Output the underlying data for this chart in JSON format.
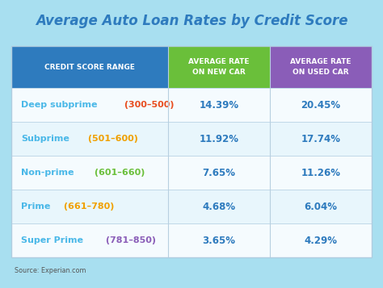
{
  "title": "Average Auto Loan Rates by Credit Score",
  "background_color": "#a8dff0",
  "header_col1_bg": "#2e7bbe",
  "header_col2_bg": "#6abf3a",
  "header_col3_bg": "#8a5db8",
  "header_text_color": "#ffffff",
  "header_col1": "CREDIT SCORE RANGE",
  "header_col2": "AVERAGE RATE\nON NEW CAR",
  "header_col3": "AVERAGE RATE\nON USED CAR",
  "row_bg_light": "#e8f6fc",
  "row_bg_white": "#f5fbfe",
  "rows": [
    {
      "label": "Deep subprime",
      "range": " (300–500)",
      "new_rate": "14.39%",
      "used_rate": "20.45%",
      "label_color": "#4ab8e8",
      "range_color": "#e84c1e"
    },
    {
      "label": "Subprime",
      "range": " (501–600)",
      "new_rate": "11.92%",
      "used_rate": "17.74%",
      "label_color": "#4ab8e8",
      "range_color": "#f0a000"
    },
    {
      "label": "Non-prime",
      "range": " (601–660)",
      "new_rate": "7.65%",
      "used_rate": "11.26%",
      "label_color": "#4ab8e8",
      "range_color": "#6abf3a"
    },
    {
      "label": "Prime",
      "range": " (661–780)",
      "new_rate": "4.68%",
      "used_rate": "6.04%",
      "label_color": "#4ab8e8",
      "range_color": "#f0a000"
    },
    {
      "label": "Super Prime",
      "range": " (781–850)",
      "new_rate": "3.65%",
      "used_rate": "4.29%",
      "label_color": "#4ab8e8",
      "range_color": "#8a5db8"
    }
  ],
  "data_color": "#2e7bbe",
  "source_text": "Source: Experian.com",
  "source_color": "#555555",
  "title_color": "#2e7bbe"
}
